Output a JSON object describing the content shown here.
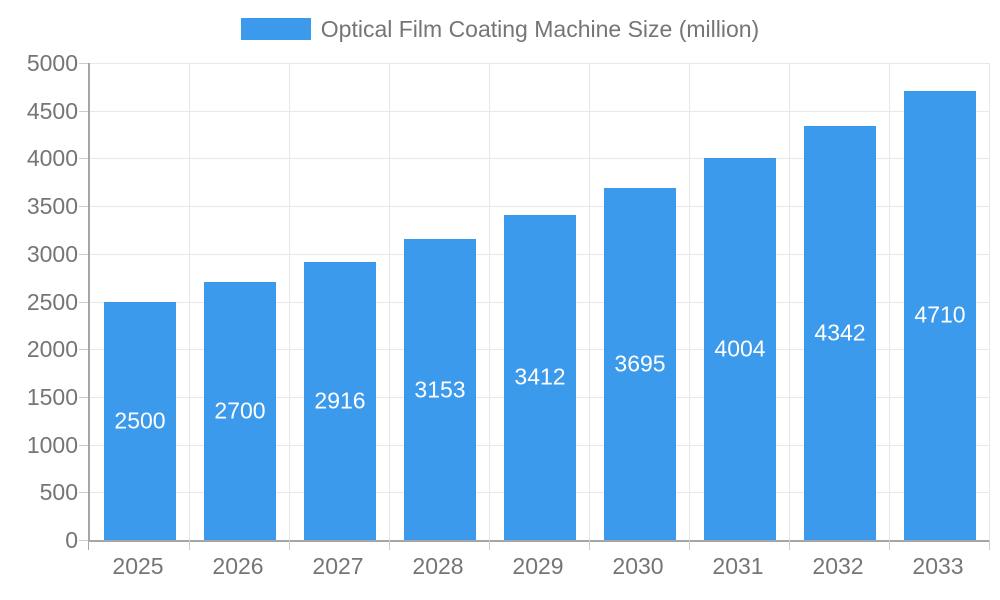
{
  "legend": {
    "label": "Optical Film Coating Machine Size (million)"
  },
  "chart_data": {
    "type": "bar",
    "title": "Optical Film Coating Machine Size (million)",
    "series_name": "Optical Film Coating Machine Size (million)",
    "categories": [
      "2025",
      "2026",
      "2027",
      "2028",
      "2029",
      "2030",
      "2031",
      "2032",
      "2033"
    ],
    "values": [
      2500,
      2700,
      2916,
      3153,
      3412,
      3695,
      4004,
      4342,
      4710
    ],
    "xlabel": "",
    "ylabel": "",
    "ylim": [
      0,
      5000
    ],
    "ytick_step": 500,
    "ytick_labels": [
      "0",
      "500",
      "1000",
      "1500",
      "2000",
      "2500",
      "3000",
      "3500",
      "4000",
      "4500",
      "5000"
    ],
    "grid": true,
    "legend_position": "top-center",
    "bar_label_position": "inside-center",
    "colors": {
      "bar": "#3B9AEC",
      "bar_label": "#FFFFFF",
      "axis_text": "#757575",
      "gridline": "#E8E8E8",
      "axis_line": "#A6A6A6",
      "tick": "#CCCCCC"
    }
  }
}
